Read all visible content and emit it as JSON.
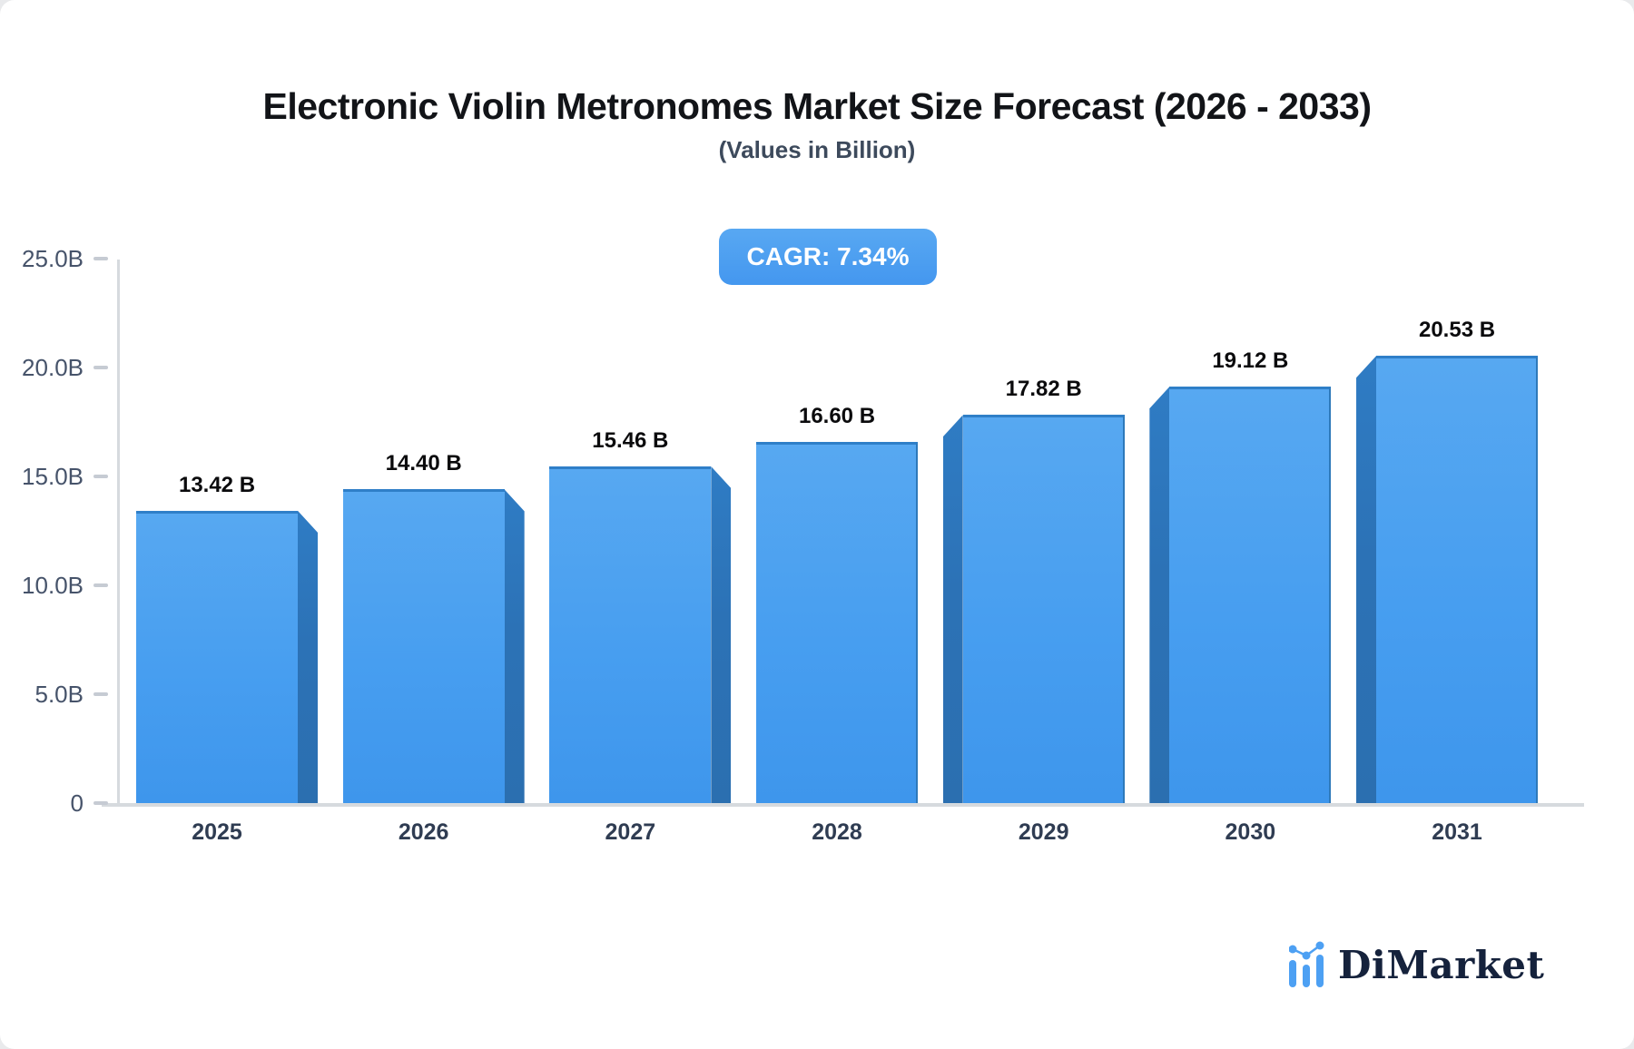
{
  "title": "Electronic Violin Metronomes Market Size Forecast (2026 - 2033)",
  "subtitle": "(Values in Billion)",
  "badge": {
    "label": "CAGR: 7.34%"
  },
  "logo": {
    "text": "DiMarket",
    "icon": "bar-line-chart-icon"
  },
  "colors": {
    "accent_blue": "#4a9ef0",
    "bar_face": "#479ef0",
    "bar_bevel": "#2c72b6",
    "axis_gray": "#d6dade",
    "tick_text": "#46536a",
    "logo_navy": "#15223c",
    "badge_text": "#ffffff"
  },
  "chart_data": {
    "type": "bar",
    "title": "Electronic Violin Metronomes Market Size Forecast (2026 - 2033)",
    "subtitle": "(Values in Billion)",
    "categories": [
      "2025",
      "2026",
      "2027",
      "2028",
      "2029",
      "2030",
      "2031"
    ],
    "values": [
      13.42,
      14.4,
      15.46,
      16.6,
      17.82,
      19.12,
      20.53
    ],
    "value_labels": [
      "13.42 B",
      "14.40 B",
      "15.46 B",
      "16.60 B",
      "17.82 B",
      "19.12 B",
      "20.53 B"
    ],
    "xlabel": "",
    "ylabel": "",
    "ylim": [
      0,
      25
    ],
    "ytick_values": [
      25,
      20,
      15,
      10,
      5,
      0
    ],
    "ytick_labels": [
      "25.0B",
      "20.0B",
      "15.0B",
      "10.0B",
      "5.0B",
      "0"
    ],
    "grid": "off",
    "legend": "none",
    "annotation": "CAGR: 7.34%"
  }
}
